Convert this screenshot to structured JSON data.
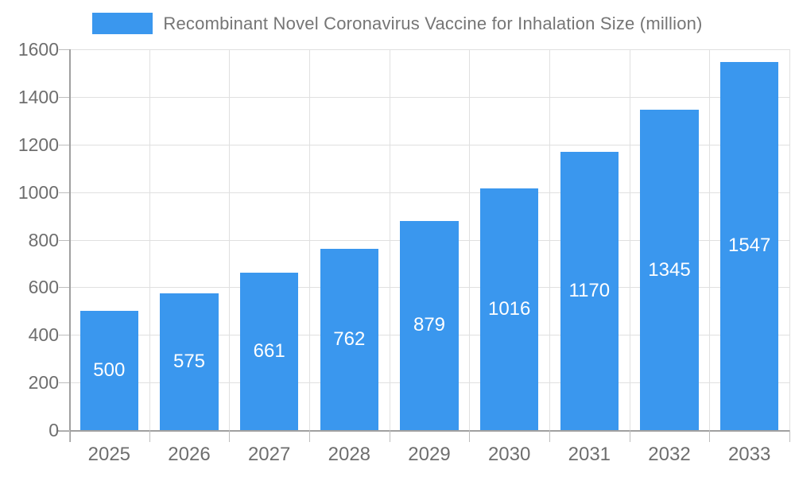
{
  "legend": {
    "label": "Recombinant Novel Coronavirus Vaccine for Inhalation Size (million)"
  },
  "chart_data": {
    "type": "bar",
    "title": "Recombinant Novel Coronavirus Vaccine for Inhalation Size (million)",
    "categories": [
      "2025",
      "2026",
      "2027",
      "2028",
      "2029",
      "2030",
      "2031",
      "2032",
      "2033"
    ],
    "values": [
      500,
      575,
      661,
      762,
      879,
      1016,
      1170,
      1345,
      1547
    ],
    "xlabel": "",
    "ylabel": "",
    "ylim": [
      0,
      1600
    ],
    "yticks": [
      0,
      200,
      400,
      600,
      800,
      1000,
      1200,
      1400,
      1600
    ],
    "grid": true,
    "legend_position": "top-center",
    "value_labels": "inside-center",
    "colors": {
      "bar": "#3a97ee",
      "value_label": "#ffffff",
      "axis_label": "#6e6e6e",
      "legend_text": "#757575",
      "gridline": "#e0e0e0",
      "axis_line": "#a0a0a0",
      "tick": "#bdbdbd",
      "background": "#ffffff"
    }
  }
}
